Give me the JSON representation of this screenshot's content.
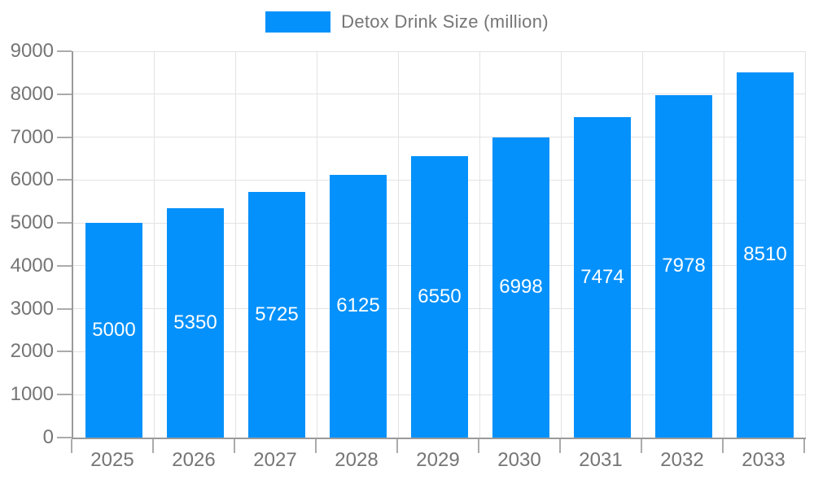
{
  "chart_data": {
    "type": "bar",
    "title": "",
    "legend": "Detox Drink Size (million)",
    "legend_position": "top-center",
    "categories": [
      "2025",
      "2026",
      "2027",
      "2028",
      "2029",
      "2030",
      "2031",
      "2032",
      "2033"
    ],
    "series": [
      {
        "name": "Detox Drink Size (million)",
        "values": [
          5000,
          5350,
          5725,
          6125,
          6550,
          6998,
          7474,
          7978,
          8510
        ]
      }
    ],
    "xlabel": "",
    "ylabel": "",
    "ylim": [
      0,
      9000
    ],
    "ytick_step": 1000,
    "grid": true,
    "value_labels_inside_bars": true
  },
  "colors": {
    "bar": "#0591fb",
    "bar_value_text": "#ffffff",
    "axis_text": "#757575",
    "grid_line": "#e3e3e3",
    "axis_line": "#9a9a9a",
    "background": "#ffffff"
  }
}
